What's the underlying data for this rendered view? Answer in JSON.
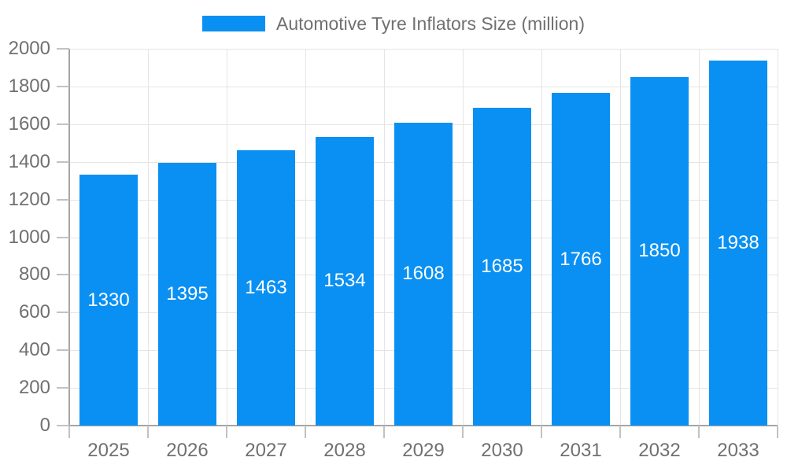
{
  "chart_data": {
    "type": "bar",
    "title": "Automotive Tyre Inflators Size (million)",
    "legend": {
      "position": "top",
      "label": "Automotive Tyre Inflators Size (million)"
    },
    "categories": [
      "2025",
      "2026",
      "2027",
      "2028",
      "2029",
      "2030",
      "2031",
      "2032",
      "2033"
    ],
    "series": [
      {
        "name": "Automotive Tyre Inflators Size (million)",
        "values": [
          1330,
          1395,
          1463,
          1534,
          1608,
          1685,
          1766,
          1850,
          1938
        ]
      }
    ],
    "xlabel": "",
    "ylabel": "",
    "ylim": [
      0,
      2000
    ],
    "ytick_step": 200,
    "ytick_labels": [
      "0",
      "200",
      "400",
      "600",
      "800",
      "1000",
      "1200",
      "1400",
      "1600",
      "1800",
      "2000"
    ],
    "grid": true,
    "data_labels_inside_bars": true,
    "colors": {
      "bar": "#0a90f2",
      "bar_label": "#ffffff",
      "axis_text": "#707070",
      "grid_line": "#e5e5e5",
      "axis_line": "#a6a6a6",
      "tick": "#c2c2c2",
      "background": "#ffffff"
    }
  }
}
